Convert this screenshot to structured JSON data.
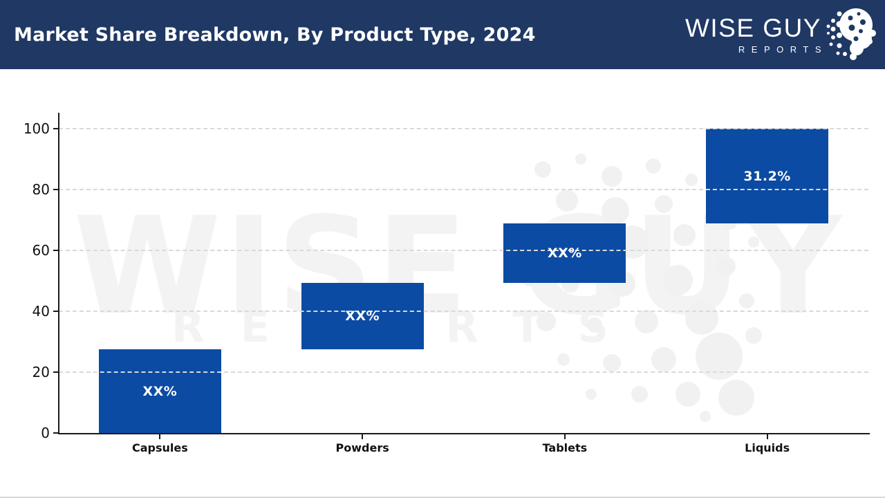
{
  "header": {
    "title": "Market Share Breakdown, By Product Type, 2024",
    "background_color": "#1f3864",
    "logo_line1": "WISE GUY",
    "logo_line2": "REPORTS"
  },
  "watermark": {
    "line1": "WISE GUY",
    "line2": "REPORTS"
  },
  "chart_data": {
    "type": "bar",
    "variant": "floating-waterfall",
    "title": "Market Share Breakdown, By Product Type, 2024",
    "categories": [
      "Capsules",
      "Powders",
      "Tablets",
      "Liquids"
    ],
    "segments": [
      {
        "category": "Capsules",
        "start": 0,
        "end": 27.5,
        "value": 27.5,
        "label": "XX%"
      },
      {
        "category": "Powders",
        "start": 27.5,
        "end": 49.4,
        "value": 21.9,
        "label": "XX%"
      },
      {
        "category": "Tablets",
        "start": 49.4,
        "end": 68.8,
        "value": 19.4,
        "label": "XX%"
      },
      {
        "category": "Liquids",
        "start": 68.8,
        "end": 100,
        "value": 31.2,
        "label": "31.2%"
      }
    ],
    "yticks": [
      0,
      20,
      40,
      60,
      80,
      100
    ],
    "ylim": [
      0,
      105
    ],
    "xlabel": "",
    "ylabel": "",
    "bar_color": "#0b4ba3",
    "bar_label_color": "#ffffff",
    "grid": {
      "horizontal": true,
      "style": "dashed",
      "color": "#d9d9d9",
      "on_top_of_bars": true
    },
    "axis_color": "#1a1a1a",
    "legend": "none"
  }
}
